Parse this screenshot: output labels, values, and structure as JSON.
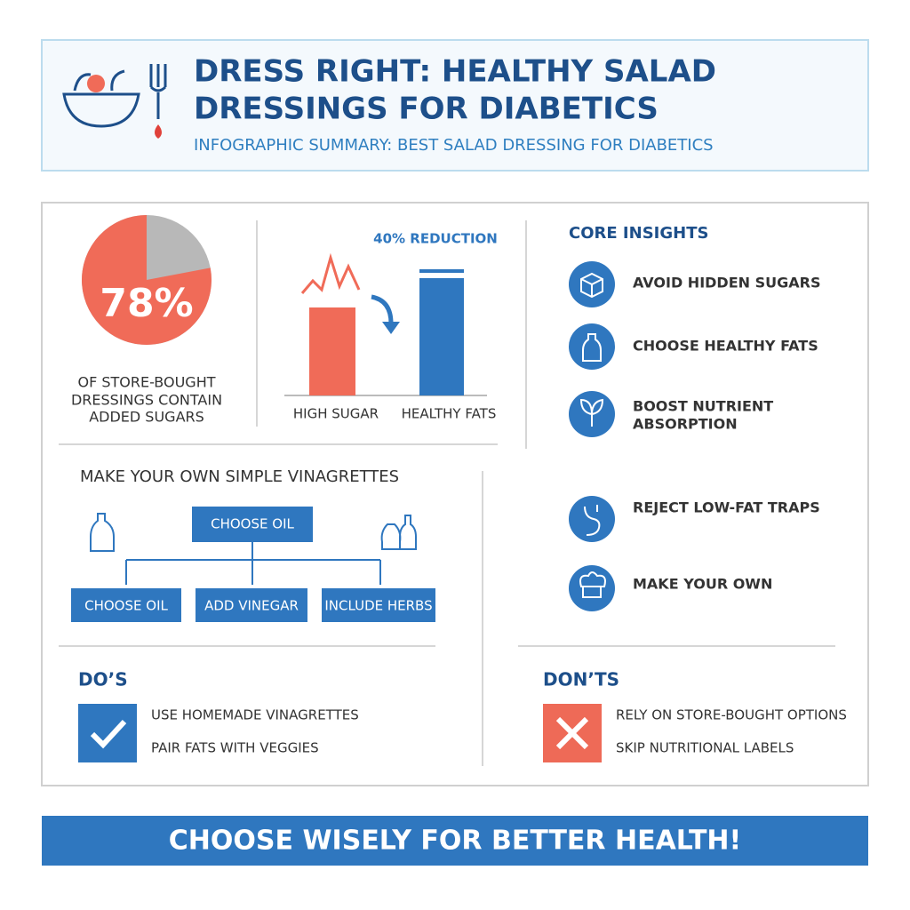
{
  "header": {
    "title_lines": [
      "DRESS RIGHT: HEALTHY SALAD",
      "DRESSINGS FOR DIABETICS"
    ],
    "subtitle": "INFOGRAPHIC SUMMARY: BEST SALAD DRESSING FOR DIABETICS"
  },
  "stat": {
    "value": 78,
    "label": "78%",
    "caption_lines": [
      "OF STORE-BOUGHT",
      "DRESSINGS CONTAIN",
      "ADDED SUGARS"
    ]
  },
  "comparison": {
    "annotation": "40% REDUCTION",
    "labels": [
      "HIGH SUGAR",
      "HEALTHY FATS"
    ]
  },
  "insights": {
    "title": "CORE INSIGHTS",
    "items": [
      [
        "AVOID HIDDEN SUGARS"
      ],
      [
        "CHOOSE HEALTHY FATS"
      ],
      [
        "BOOST NUTRIENT",
        "ABSORPTION"
      ],
      [
        "REJECT LOW-FAT TRAPS"
      ],
      [
        "MAKE YOUR OWN"
      ]
    ]
  },
  "vinaigrette": {
    "title": "MAKE YOUR OWN SIMPLE VINAGRETTES",
    "top": "CHOOSE OIL",
    "steps": [
      "CHOOSE OIL",
      "ADD VINEGAR",
      "INCLUDE HERBS"
    ]
  },
  "dos": {
    "title": "DO’S",
    "items": [
      "USE HOMEMADE VINAGRETTES",
      "PAIR FATS WITH VEGGIES"
    ]
  },
  "donts": {
    "title": "DON’TS",
    "items": [
      "RELY ON STORE-BOUGHT OPTIONS",
      "SKIP NUTRITIONAL LABELS"
    ]
  },
  "footer": "CHOOSE WISELY FOR BETTER HEALTH!"
}
